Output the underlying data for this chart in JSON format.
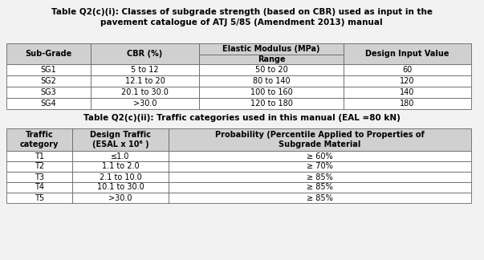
{
  "title1_bold": "Table Q2(c)(i):",
  "title1_rest": " Classes of subgrade strength (based on CBR) used as input in the\npavement catalogue of ATJ 5/85 (Amendment 2013) manual",
  "title1_full": "Table Q2(c)(i): Classes of subgrade strength (based on CBR) used as input in the\npavement catalogue of ATJ 5/85 (Amendment 2013) manual",
  "t1_headers": [
    "Sub-Grade",
    "CBR (%)",
    "Elastic Modulus (MPa)",
    "Design Input Value"
  ],
  "t1_subheader3": "Range",
  "t1_rows": [
    [
      "SG1",
      "5 to 12",
      "50 to 20",
      "60"
    ],
    [
      "SG2",
      "12.1 to 20",
      "80 to 140",
      "120"
    ],
    [
      "SG3",
      "20.1 to 30.0",
      "100 to 160",
      "140"
    ],
    [
      "SG4",
      ">30.0",
      "120 to 180",
      "180"
    ]
  ],
  "title2_full": "Table Q2(c)(ii): Traffic categories used in this manual (EAL =80 kN)",
  "t2_headers": [
    "Traffic\ncategory",
    "Design Traffic\n(ESAL x 10⁶ )",
    "Probability (Percentile Applied to Properties of\nSubgrade Material"
  ],
  "t2_rows": [
    [
      "T1",
      "≤1.0",
      "≥ 60%"
    ],
    [
      "T2",
      "1.1 to 2.0",
      "≥ 70%"
    ],
    [
      "T3",
      "2.1 to 10.0",
      "≥ 85%"
    ],
    [
      "T4",
      "10.1 to 30.0",
      "≥ 85%"
    ],
    [
      "T5",
      ">30.0",
      "≥ 85%"
    ]
  ],
  "header_bg": "#d0d0d0",
  "cell_bg": "#ffffff",
  "edge_color": "#666666",
  "text_color": "#000000",
  "bg_color": "#f2f2f2",
  "lw": 0.6,
  "title_fs": 7.5,
  "hdr_fs": 7.0,
  "cell_fs": 7.0,
  "fig_w": 6.03,
  "fig_h": 3.24,
  "dpi": 100
}
